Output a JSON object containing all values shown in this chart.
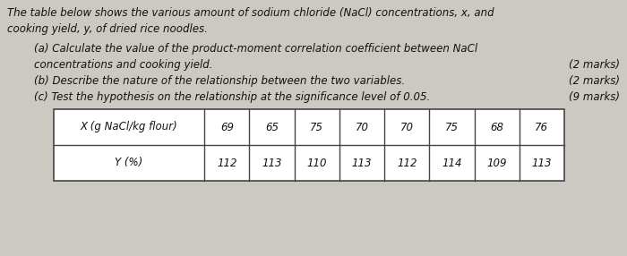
{
  "background_color": "#ccc9c2",
  "text_color": "#111111",
  "intro_line1": "The table below shows the various amount of sodium chloride (NaCl) concentrations, x, and",
  "intro_line2": "cooking yield, y, of dried rice noodles.",
  "part_a_line1": "(a) Calculate the value of the product-moment correlation coefficient between NaCl",
  "part_a_line2": "concentrations and cooking yield.",
  "part_a_marks": "(2 marks)",
  "part_b": "(b) Describe the nature of the relationship between the two variables.",
  "part_b_marks": "(2 marks)",
  "part_c": "(c) Test the hypothesis on the relationship at the significance level of 0.05.",
  "part_c_marks": "(9 marks)",
  "col_header": "X (g NaCl/kg flour)",
  "row_header": "Y (%)",
  "x_values": [
    69,
    65,
    75,
    70,
    70,
    75,
    68,
    76
  ],
  "y_values": [
    112,
    113,
    110,
    113,
    112,
    114,
    109,
    113
  ],
  "font_size": 8.5,
  "table_font_size": 8.5,
  "table_bg": "#ffffff",
  "table_border_color": "#444444"
}
